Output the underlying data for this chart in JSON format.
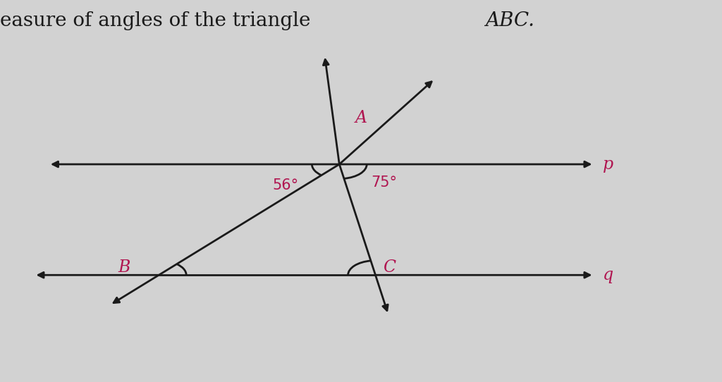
{
  "bg_color": "#d2d2d2",
  "line_color": "#1a1a1a",
  "label_color": "#b01550",
  "title_color": "#1a1a1a",
  "title_text": "easure of angles of the triangle ",
  "title_italic": "ABC",
  "title_suffix": ".",
  "angle_56": "56°",
  "angle_75": "75°",
  "label_A": "A",
  "label_B": "B",
  "label_C": "C",
  "label_P": "p",
  "label_Q": "q",
  "A": [
    0.47,
    0.57
  ],
  "B": [
    0.22,
    0.28
  ],
  "C": [
    0.52,
    0.28
  ],
  "lw": 2.0,
  "arrow_scale": 14,
  "arc_r": 0.038,
  "font_size_labels": 17,
  "font_size_angles": 15,
  "font_size_title": 20
}
